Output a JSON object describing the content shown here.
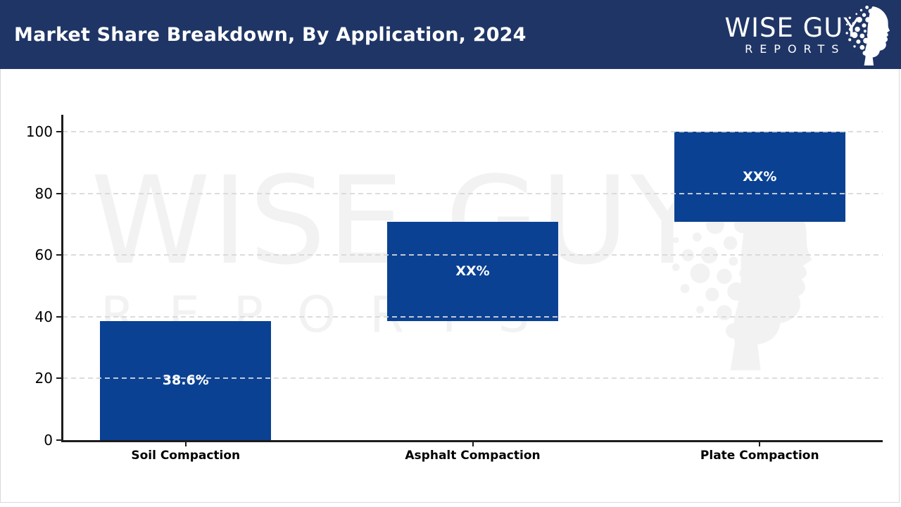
{
  "header": {
    "title": "Market Share Breakdown, By Application, 2024",
    "logo": {
      "line1": "WISE GUY",
      "line2": "REPORTS"
    }
  },
  "watermark": {
    "line1": "WISE GUY",
    "line2": "REPORTS"
  },
  "chart_data": {
    "type": "bar",
    "subtype": "waterfall",
    "title": "Market Share Breakdown, By Application, 2024",
    "categories": [
      "Soil Compaction",
      "Asphalt Compaction",
      "Plate Compaction"
    ],
    "segments": [
      {
        "category": "Soil Compaction",
        "start": 0,
        "end": 38.6,
        "label": "38.6%"
      },
      {
        "category": "Asphalt Compaction",
        "start": 38.6,
        "end": 70.8,
        "label": "XX%"
      },
      {
        "category": "Plate Compaction",
        "start": 70.8,
        "end": 100,
        "label": "XX%"
      }
    ],
    "yticks": [
      0,
      20,
      40,
      60,
      80,
      100
    ],
    "ylim": [
      0,
      105.5
    ],
    "xlabel": "",
    "ylabel": "",
    "grid": "horizontal-dashed-over-bars",
    "legend": "none",
    "colors": {
      "bar": "#0a4193",
      "bar_label": "#ffffff",
      "grid_line": "#d8d8d8",
      "axis": "#1c1c1c",
      "tick_label": "#000000",
      "header_bg": "#1f3566",
      "header_text": "#ffffff",
      "watermark": "#f2f2f2"
    }
  }
}
